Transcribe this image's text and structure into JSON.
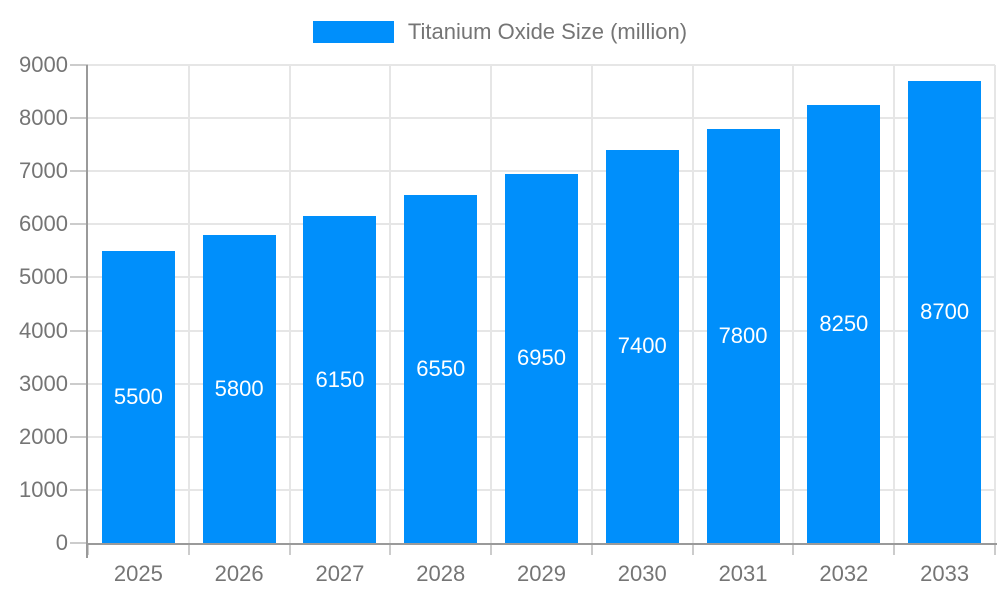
{
  "legend": {
    "label": "Titanium Oxide Size (million)",
    "position": "top"
  },
  "chart_data": {
    "type": "bar",
    "title": "",
    "series_label": "Titanium Oxide Size (million)",
    "categories": [
      "2025",
      "2026",
      "2027",
      "2028",
      "2029",
      "2030",
      "2031",
      "2032",
      "2033"
    ],
    "values": [
      5500,
      5800,
      6150,
      6550,
      6950,
      7400,
      7800,
      8250,
      8700
    ],
    "xlabel": "",
    "ylabel": "",
    "ylim": [
      0,
      9000
    ],
    "ytick_step": 1000,
    "ytick_labels": [
      "0",
      "1000",
      "2000",
      "3000",
      "4000",
      "5000",
      "6000",
      "7000",
      "8000",
      "9000"
    ],
    "grid": true,
    "legend_position": "top-center",
    "value_labels_position": "inside-center",
    "colors": {
      "bar": "#008FFB",
      "bar_value_label": "#FFFFFF",
      "axis_text": "#757575",
      "axis_line": "#9A9A9A",
      "gridline": "#E6E6E6",
      "tick": "#CCCCCC",
      "background": "#FFFFFF"
    }
  }
}
